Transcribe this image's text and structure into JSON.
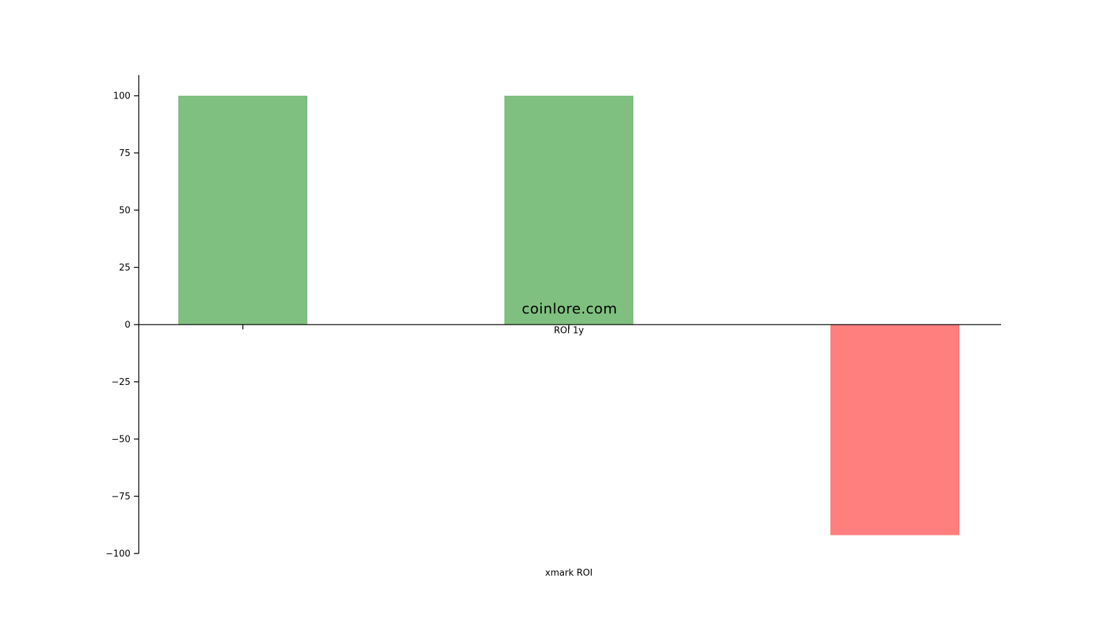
{
  "page": {
    "background": "#ffffff"
  },
  "chart_data": {
    "type": "bar",
    "title": "",
    "xlabel": "xmark ROI",
    "ylabel": "",
    "categories": [
      "",
      "ROI 1y",
      ""
    ],
    "values": [
      100,
      100,
      -92
    ],
    "bar_colors": [
      "#7fbf7f",
      "#7fbf7f",
      "#ff7f7f"
    ],
    "positive_color": "#7fbf7f",
    "negative_color": "#ff7f7f",
    "ytick_values": [
      100,
      75,
      50,
      25,
      0,
      -25,
      -50,
      -75,
      -100
    ],
    "ytick_labels": [
      "100",
      "75",
      "50",
      "25",
      "0",
      "−25",
      "−50",
      "−75",
      "−100"
    ],
    "ylim": [
      -100,
      109
    ],
    "xtick_visible_indices": [
      0,
      1,
      2
    ],
    "grid": false,
    "legend": "none",
    "watermark": "coinlore.com",
    "axis_color": "#000000",
    "watermark_color": "rgba(51,51,51,0.8)"
  }
}
